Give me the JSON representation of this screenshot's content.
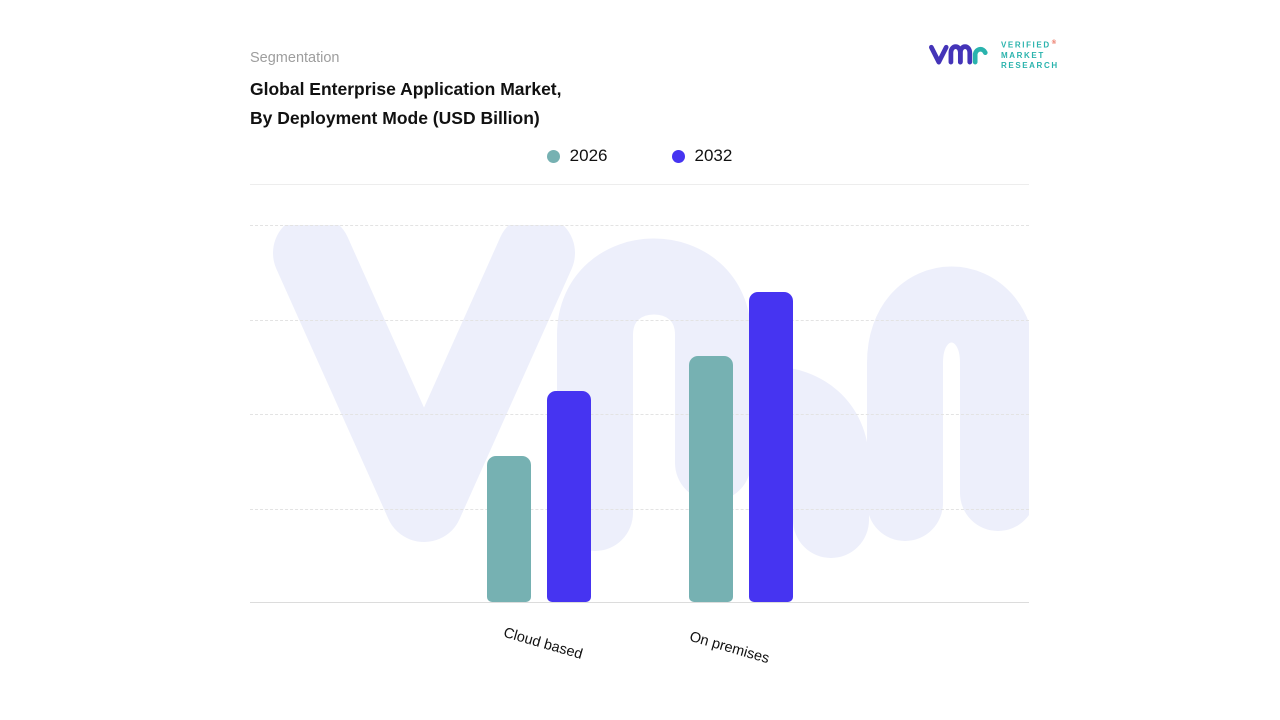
{
  "header": {
    "kicker": "Segmentation",
    "title_line1": "Global Enterprise Application Market,",
    "title_line2": "By Deployment Mode (USD Billion)"
  },
  "logo": {
    "brand_lines": {
      "0": "VERIFIED",
      "1": "MARKET",
      "2": "RESEARCH"
    },
    "registered_mark": "®",
    "mark_purple": "#4434b8",
    "mark_teal": "#2ab3ad"
  },
  "legend": {
    "items": [
      {
        "label": "2026",
        "color": "#76b1b2"
      },
      {
        "label": "2032",
        "color": "#4634f1"
      }
    ]
  },
  "chart_data": {
    "type": "bar",
    "title": "Global Enterprise Application Market, By Deployment Mode (USD Billion)",
    "categories": [
      "Cloud based",
      "On premises"
    ],
    "series": [
      {
        "name": "2026",
        "color": "#76b1b2",
        "values": [
          146,
          246
        ]
      },
      {
        "name": "2032",
        "color": "#4634f1",
        "values": [
          211,
          310
        ]
      }
    ],
    "xlabel": "",
    "ylabel": "",
    "ylim": [
      0,
      378
    ],
    "value_axis_labels_visible": false,
    "units": "relative bar heights (no numeric axis shown in image)",
    "legend_position": "top-center",
    "grid": "horizontal dashed lines, solid baseline"
  },
  "watermark": {
    "text": "vmr",
    "color": "#edeffb"
  }
}
